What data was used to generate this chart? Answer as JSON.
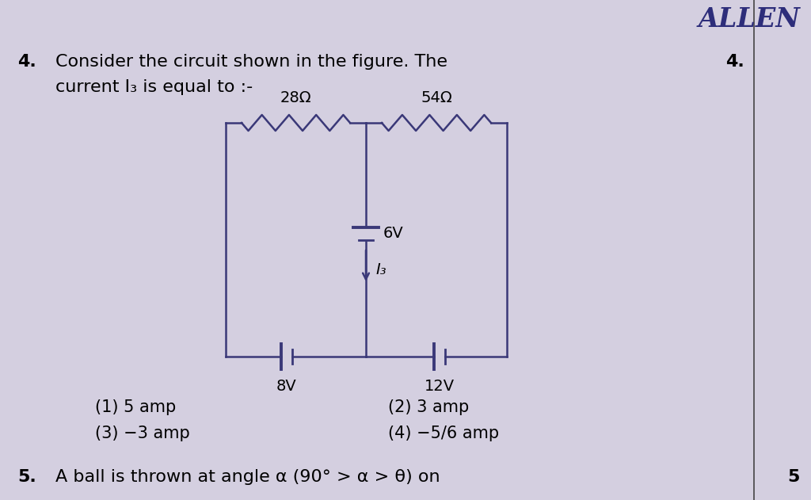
{
  "bg_color": "#d4cfe0",
  "title_num": "4.",
  "question_text_line1": "Consider the circuit shown in the figure. The",
  "question_text_line2": "current I₃ is equal to :-",
  "allen_text": "ALLEN",
  "right_num": "4.",
  "options": [
    {
      "num": "(1)",
      "text": "5 amp"
    },
    {
      "num": "(2)",
      "text": "3 amp"
    },
    {
      "num": "(3)",
      "text": "−3 amp"
    },
    {
      "num": "(4)",
      "text": "−5/6 amp"
    }
  ],
  "next_question": "5.",
  "next_text": "A ball is thrown at angle α (90° > α > θ) on",
  "next_right": "5",
  "circuit": {
    "res1_label": "28Ω",
    "res2_label": "54Ω",
    "bat1_label": "8V",
    "bat2_label": "12V",
    "bat3_label": "6V",
    "current_label": "I₃"
  },
  "font_size_question": 16,
  "font_size_options": 15,
  "font_size_allen": 24,
  "font_size_circuit": 13,
  "circuit_color": "#3a3878",
  "allen_color": "#2d2d7a"
}
